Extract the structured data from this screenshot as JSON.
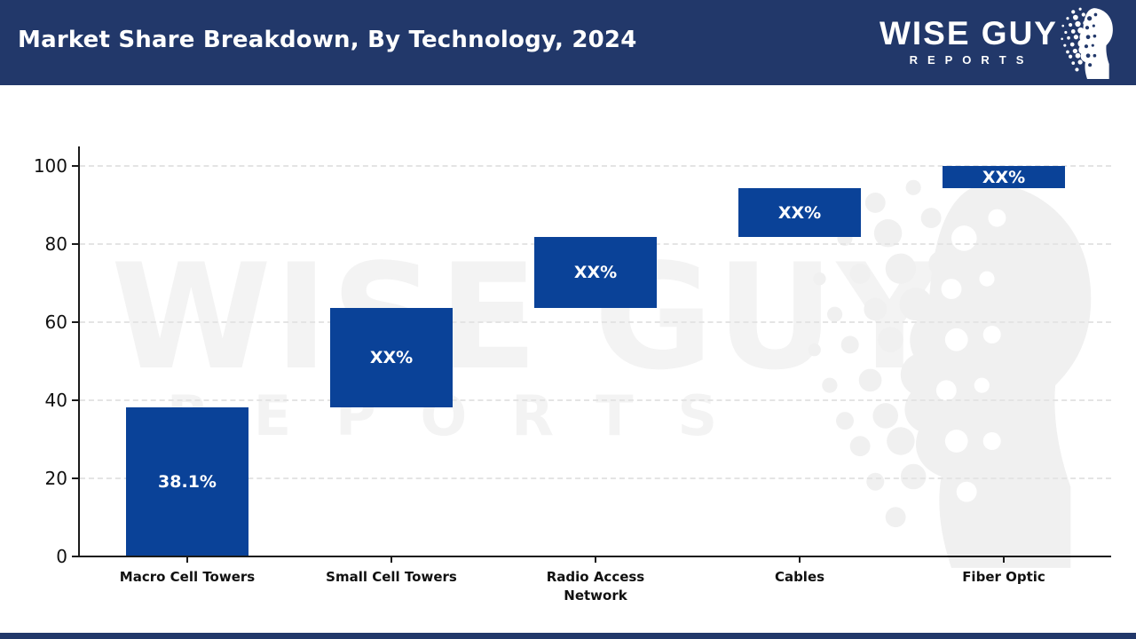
{
  "header": {
    "title": "Market Share Breakdown, By Technology, 2024",
    "logo": {
      "line1": "WISE GUY",
      "line2": "REPORTS"
    }
  },
  "watermark": {
    "line1": "WISE GUY",
    "line2": "REPORTS"
  },
  "chart_data": {
    "type": "bar",
    "variant": "waterfall",
    "title": "Market Share Breakdown, By Technology, 2024",
    "categories": [
      "Macro Cell Towers",
      "Small Cell Towers",
      "Radio Access Network",
      "Cables",
      "Fiber Optic"
    ],
    "tick_labels": [
      "Macro Cell Towers",
      "Small Cell Towers",
      "Radio Access\nNetwork",
      "Cables",
      "Fiber Optic"
    ],
    "segments": [
      {
        "category": "Macro Cell Towers",
        "start": 0,
        "end": 38.1,
        "label": "38.1%"
      },
      {
        "category": "Small Cell Towers",
        "start": 38.1,
        "end": 63.6,
        "label": "XX%"
      },
      {
        "category": "Radio Access Network",
        "start": 63.6,
        "end": 81.8,
        "label": "XX%"
      },
      {
        "category": "Cables",
        "start": 81.8,
        "end": 94.3,
        "label": "XX%"
      },
      {
        "category": "Fiber Optic",
        "start": 94.3,
        "end": 100,
        "label": "XX%"
      }
    ],
    "yticks": [
      0,
      20,
      40,
      60,
      80,
      100
    ],
    "ylim": [
      0,
      105
    ],
    "grid": "horizontal-dashed",
    "legend": "none",
    "bar_color": "#0a4298",
    "bar_label_color": "#ffffff",
    "axis_color": "#1a1a1a",
    "gridline_color": "#e4e4e4"
  },
  "colors": {
    "header_bg": "#22386a",
    "footer_bg": "#22386a",
    "title_text": "#ffffff",
    "watermark": "#f3f3f3"
  }
}
